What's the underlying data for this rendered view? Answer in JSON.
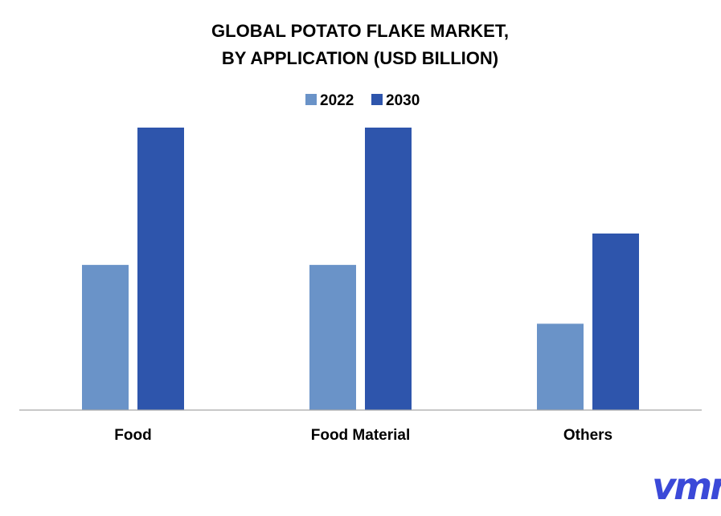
{
  "chart_data": {
    "type": "bar",
    "title_lines": [
      "GLOBAL POTATO FLAKE MARKET,",
      "BY APPLICATION (USD BILLION)"
    ],
    "categories": [
      "Food",
      "Food Material",
      "Others"
    ],
    "series": [
      {
        "name": "2022",
        "color": "#6a93c8",
        "values": [
          1.85,
          1.85,
          1.1
        ]
      },
      {
        "name": "2030",
        "color": "#2e55ac",
        "values": [
          3.6,
          3.6,
          2.25
        ]
      }
    ],
    "ylim": [
      0,
      3.6
    ],
    "legend_position": "top-center",
    "grid": false,
    "value_axis_shown": false
  },
  "watermark": {
    "text": "vmr",
    "color": "#3b49d8",
    "icon": "vmr-logo"
  }
}
